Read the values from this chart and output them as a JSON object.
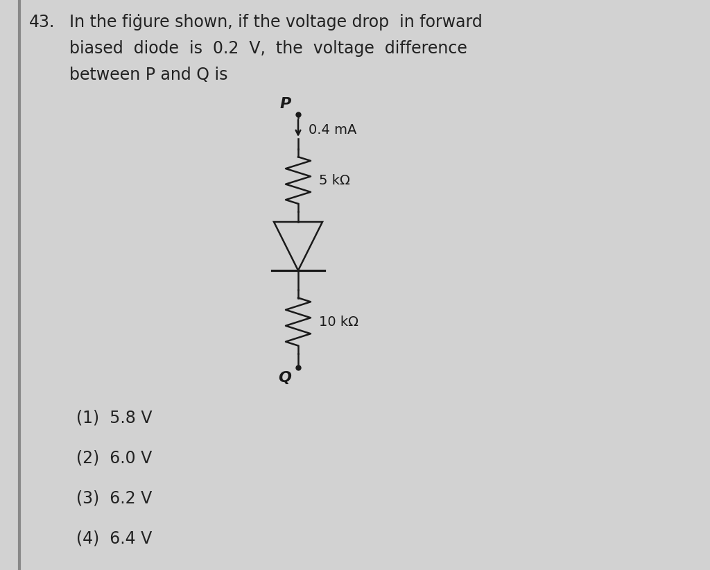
{
  "bg_color": "#d2d2d2",
  "text_color": "#222222",
  "question_number": "43.",
  "q_line1": "In the fiġure shown, if the voltage drop  in forward",
  "q_line2": "biased  diode  is  0.2  V,  the  voltage  difference",
  "q_line3": "between P and Q is",
  "label_P": "P",
  "label_Q": "Q",
  "label_current": "0.4 mA",
  "label_r1": "5 kΩ",
  "label_r2": "10 kΩ",
  "options": [
    "(1)  5.8 V",
    "(2)  6.0 V",
    "(3)  6.2 V",
    "(4)  6.4 V"
  ],
  "font_size_q": 17,
  "font_size_options": 17,
  "font_size_labels": 14,
  "line_color": "#1a1a1a",
  "border_color": "#888888"
}
